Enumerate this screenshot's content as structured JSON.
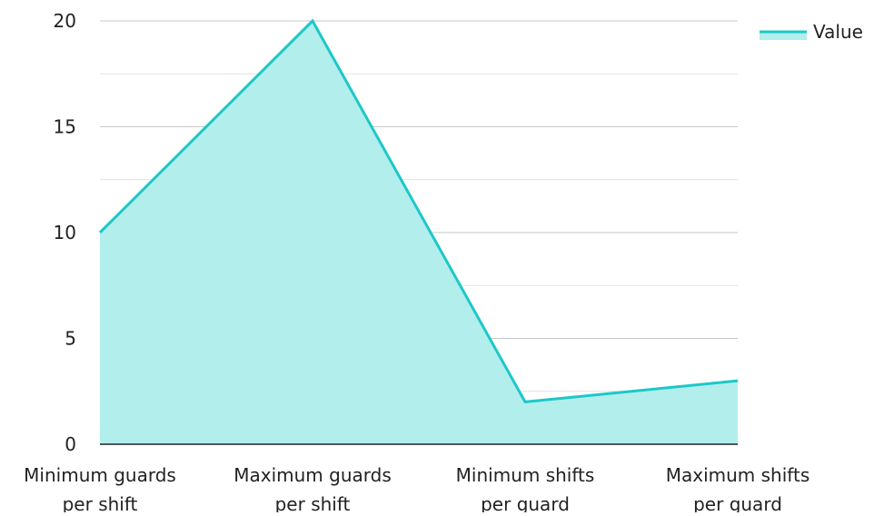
{
  "chart_data": {
    "type": "area",
    "categories": [
      "Minimum guards per shift",
      "Maximum guards per shift",
      "Minimum shifts per guard",
      "Maximum shifts per guard"
    ],
    "category_lines": [
      [
        "Minimum guards",
        "per shift"
      ],
      [
        "Maximum guards",
        "per shift"
      ],
      [
        "Minimum shifts",
        "per guard"
      ],
      [
        "Maximum shifts",
        "per guard"
      ]
    ],
    "series": [
      {
        "name": "Value",
        "values": [
          10,
          20,
          2,
          3
        ]
      }
    ],
    "y_ticks": [
      0,
      5,
      10,
      15,
      20
    ],
    "ylim": [
      0,
      20
    ],
    "grid": true,
    "legend": {
      "position": "top-right",
      "label": "Value"
    },
    "colors": {
      "line": "#1cc8c8",
      "fill": "#b2eeec",
      "grid_major": "#c8c8c8",
      "grid_minor": "#e2e2e2",
      "axis": "#222222"
    }
  }
}
